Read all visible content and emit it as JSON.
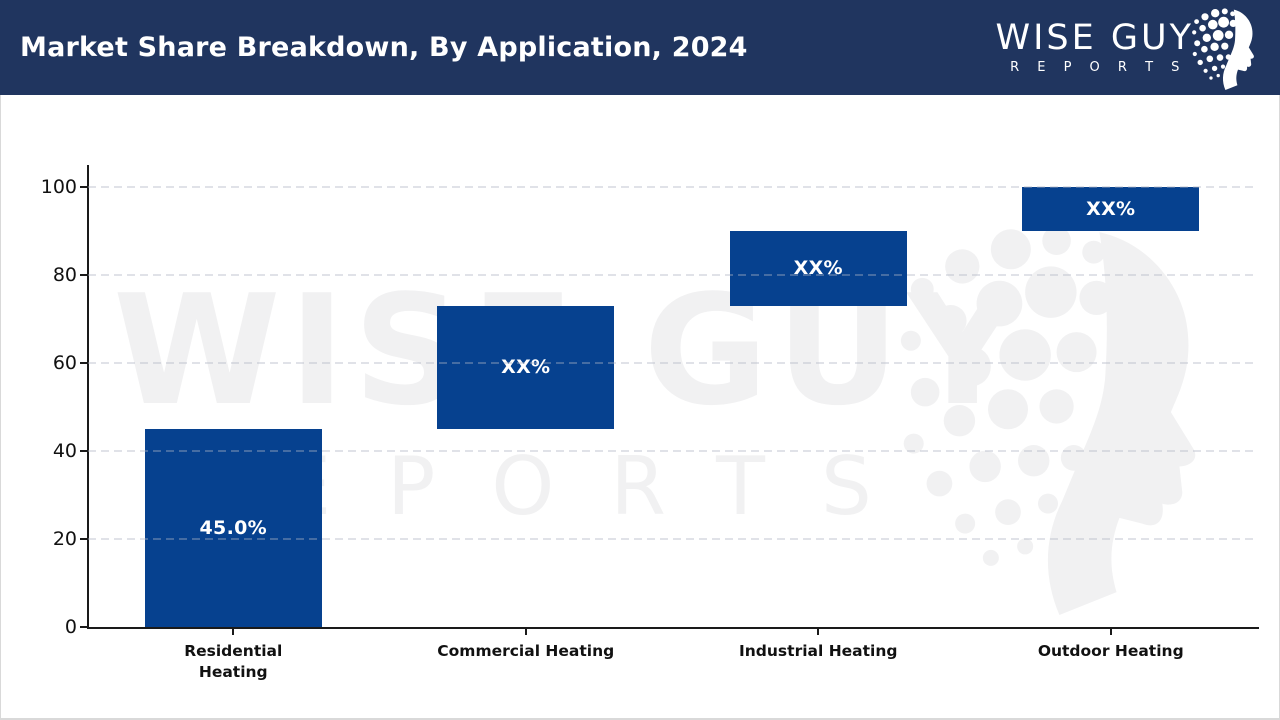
{
  "header": {
    "title": "Market Share Breakdown, By Application, 2024",
    "background_color": "#20355f",
    "logo": {
      "line1": "WISE GUY",
      "line2": "R E P O R T S",
      "head_icon": "dotted-head-profile"
    }
  },
  "watermark": {
    "line1": "WISE GUY",
    "line2": "REPORTS",
    "color": "#f1f1f2"
  },
  "chart_data": {
    "type": "bar",
    "subtype": "waterfall",
    "title": "Market Share Breakdown, By Application, 2024",
    "xlabel": "",
    "ylabel": "",
    "categories": [
      "Residential\nHeating",
      "Commercial Heating",
      "Industrial Heating",
      "Outdoor Heating"
    ],
    "segments": [
      {
        "category": "Residential Heating",
        "start": 0,
        "end": 45,
        "label": "45.0%"
      },
      {
        "category": "Commercial Heating",
        "start": 45,
        "end": 73,
        "label": "XX%"
      },
      {
        "category": "Industrial Heating",
        "start": 73,
        "end": 90,
        "label": "XX%"
      },
      {
        "category": "Outdoor Heating",
        "start": 90,
        "end": 100,
        "label": "XX%"
      }
    ],
    "yticks": [
      0,
      20,
      40,
      60,
      80,
      100
    ],
    "ylim": [
      0,
      105
    ],
    "grid": true,
    "grid_style": "dashed",
    "legend": false,
    "bar_color": "#06418f",
    "axis_color": "#1a1a1a",
    "gridline_color": "#e2e2e2",
    "bar_label_color": "#ffffff",
    "tick_label_color": "#111111"
  }
}
